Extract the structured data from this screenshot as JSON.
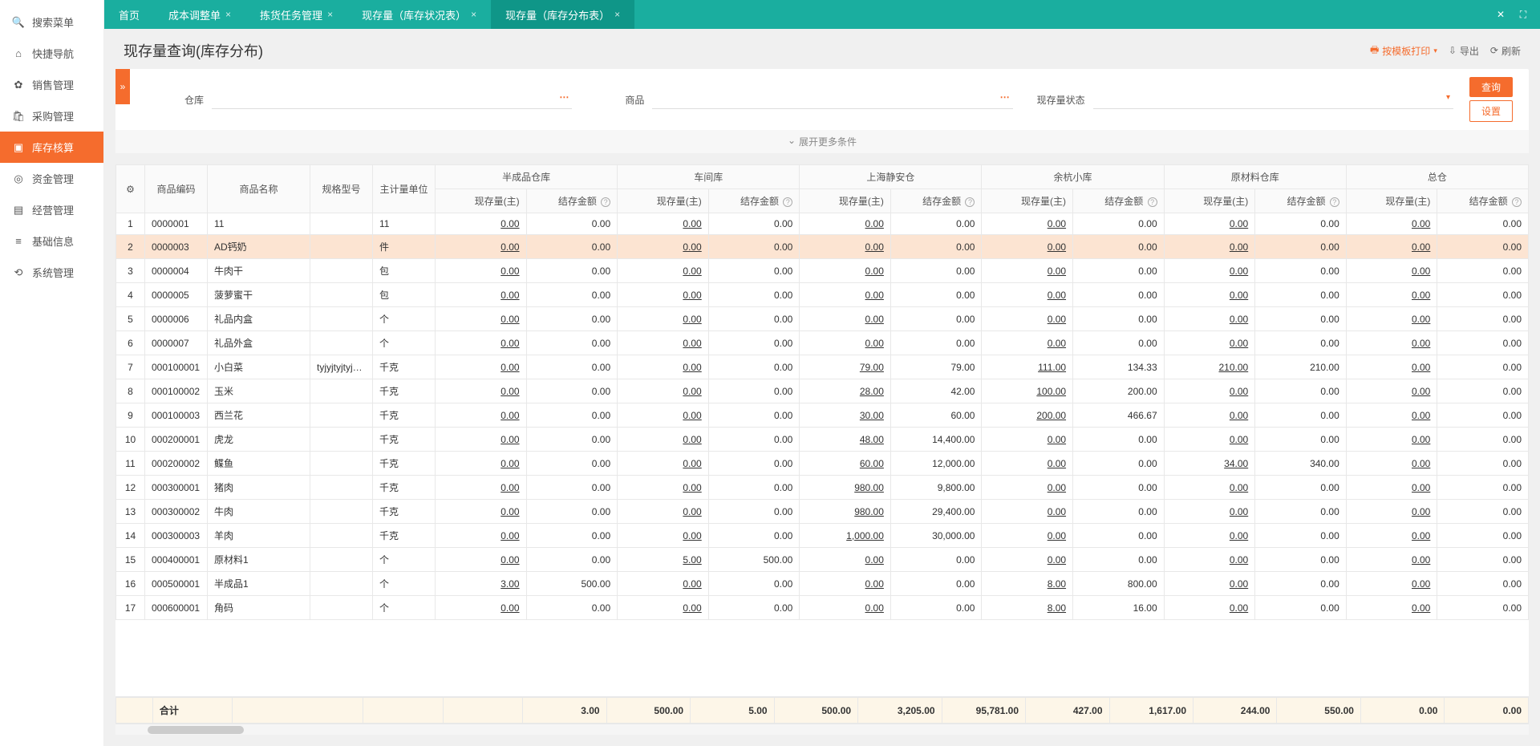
{
  "sidebar": {
    "items": [
      {
        "label": "搜索菜单",
        "icon": "search"
      },
      {
        "label": "快捷导航",
        "icon": "home"
      },
      {
        "label": "销售管理",
        "icon": "badge"
      },
      {
        "label": "采购管理",
        "icon": "bag"
      },
      {
        "label": "库存核算",
        "icon": "box",
        "active": true
      },
      {
        "label": "资金管理",
        "icon": "coin"
      },
      {
        "label": "经营管理",
        "icon": "clipboard"
      },
      {
        "label": "基础信息",
        "icon": "bars"
      },
      {
        "label": "系统管理",
        "icon": "gear"
      }
    ]
  },
  "tabs": [
    {
      "label": "首页",
      "closable": false
    },
    {
      "label": "成本调整单",
      "closable": true
    },
    {
      "label": "拣货任务管理",
      "closable": true
    },
    {
      "label": "现存量（库存状况表）",
      "closable": true
    },
    {
      "label": "现存量（库存分布表）",
      "closable": true,
      "active": true
    }
  ],
  "page": {
    "title": "现存量查询(库存分布)"
  },
  "headerActions": {
    "print": "按模板打印",
    "export": "导出",
    "refresh": "刷新"
  },
  "filter": {
    "warehouse_label": "仓库",
    "product_label": "商品",
    "status_label": "现存量状态",
    "expand_label": "展开更多条件",
    "query_btn": "查询",
    "setting_btn": "设置"
  },
  "warehouses": [
    "半成品仓库",
    "车间库",
    "上海静安仓",
    "余杭小库",
    "原材料仓库",
    "总仓"
  ],
  "columns": {
    "code": "商品编码",
    "name": "商品名称",
    "spec": "规格型号",
    "unit": "主计量单位",
    "qty": "现存量(主)",
    "amt": "结存金额",
    "total_label": "合计"
  },
  "rows": [
    {
      "idx": 1,
      "code": "0000001",
      "name": "11",
      "spec": "",
      "unit": "11",
      "v": [
        [
          "0.00",
          "0.00"
        ],
        [
          "0.00",
          "0.00"
        ],
        [
          "0.00",
          "0.00"
        ],
        [
          "0.00",
          "0.00"
        ],
        [
          "0.00",
          "0.00"
        ],
        [
          "0.00",
          "0.00"
        ]
      ]
    },
    {
      "idx": 2,
      "code": "0000003",
      "name": "AD钙奶",
      "spec": "",
      "unit": "件",
      "highlight": true,
      "v": [
        [
          "0.00",
          "0.00"
        ],
        [
          "0.00",
          "0.00"
        ],
        [
          "0.00",
          "0.00"
        ],
        [
          "0.00",
          "0.00"
        ],
        [
          "0.00",
          "0.00"
        ],
        [
          "0.00",
          "0.00"
        ]
      ]
    },
    {
      "idx": 3,
      "code": "0000004",
      "name": "牛肉干",
      "spec": "",
      "unit": "包",
      "v": [
        [
          "0.00",
          "0.00"
        ],
        [
          "0.00",
          "0.00"
        ],
        [
          "0.00",
          "0.00"
        ],
        [
          "0.00",
          "0.00"
        ],
        [
          "0.00",
          "0.00"
        ],
        [
          "0.00",
          "0.00"
        ]
      ]
    },
    {
      "idx": 4,
      "code": "0000005",
      "name": "菠萝蜜干",
      "spec": "",
      "unit": "包",
      "v": [
        [
          "0.00",
          "0.00"
        ],
        [
          "0.00",
          "0.00"
        ],
        [
          "0.00",
          "0.00"
        ],
        [
          "0.00",
          "0.00"
        ],
        [
          "0.00",
          "0.00"
        ],
        [
          "0.00",
          "0.00"
        ]
      ]
    },
    {
      "idx": 5,
      "code": "0000006",
      "name": "礼品内盒",
      "spec": "",
      "unit": "个",
      "v": [
        [
          "0.00",
          "0.00"
        ],
        [
          "0.00",
          "0.00"
        ],
        [
          "0.00",
          "0.00"
        ],
        [
          "0.00",
          "0.00"
        ],
        [
          "0.00",
          "0.00"
        ],
        [
          "0.00",
          "0.00"
        ]
      ]
    },
    {
      "idx": 6,
      "code": "0000007",
      "name": "礼品外盒",
      "spec": "",
      "unit": "个",
      "v": [
        [
          "0.00",
          "0.00"
        ],
        [
          "0.00",
          "0.00"
        ],
        [
          "0.00",
          "0.00"
        ],
        [
          "0.00",
          "0.00"
        ],
        [
          "0.00",
          "0.00"
        ],
        [
          "0.00",
          "0.00"
        ]
      ]
    },
    {
      "idx": 7,
      "code": "000100001",
      "name": "小白菜",
      "spec": "tyjyjtyjtyjdf...",
      "unit": "千克",
      "v": [
        [
          "0.00",
          "0.00"
        ],
        [
          "0.00",
          "0.00"
        ],
        [
          "79.00",
          "79.00"
        ],
        [
          "111.00",
          "134.33"
        ],
        [
          "210.00",
          "210.00"
        ],
        [
          "0.00",
          "0.00"
        ]
      ]
    },
    {
      "idx": 8,
      "code": "000100002",
      "name": "玉米",
      "spec": "",
      "unit": "千克",
      "v": [
        [
          "0.00",
          "0.00"
        ],
        [
          "0.00",
          "0.00"
        ],
        [
          "28.00",
          "42.00"
        ],
        [
          "100.00",
          "200.00"
        ],
        [
          "0.00",
          "0.00"
        ],
        [
          "0.00",
          "0.00"
        ]
      ]
    },
    {
      "idx": 9,
      "code": "000100003",
      "name": "西兰花",
      "spec": "",
      "unit": "千克",
      "v": [
        [
          "0.00",
          "0.00"
        ],
        [
          "0.00",
          "0.00"
        ],
        [
          "30.00",
          "60.00"
        ],
        [
          "200.00",
          "466.67"
        ],
        [
          "0.00",
          "0.00"
        ],
        [
          "0.00",
          "0.00"
        ]
      ]
    },
    {
      "idx": 10,
      "code": "000200001",
      "name": "虎龙",
      "spec": "",
      "unit": "千克",
      "v": [
        [
          "0.00",
          "0.00"
        ],
        [
          "0.00",
          "0.00"
        ],
        [
          "48.00",
          "14,400.00"
        ],
        [
          "0.00",
          "0.00"
        ],
        [
          "0.00",
          "0.00"
        ],
        [
          "0.00",
          "0.00"
        ]
      ]
    },
    {
      "idx": 11,
      "code": "000200002",
      "name": "鲽鱼",
      "spec": "",
      "unit": "千克",
      "v": [
        [
          "0.00",
          "0.00"
        ],
        [
          "0.00",
          "0.00"
        ],
        [
          "60.00",
          "12,000.00"
        ],
        [
          "0.00",
          "0.00"
        ],
        [
          "34.00",
          "340.00"
        ],
        [
          "0.00",
          "0.00"
        ]
      ]
    },
    {
      "idx": 12,
      "code": "000300001",
      "name": "猪肉",
      "spec": "",
      "unit": "千克",
      "v": [
        [
          "0.00",
          "0.00"
        ],
        [
          "0.00",
          "0.00"
        ],
        [
          "980.00",
          "9,800.00"
        ],
        [
          "0.00",
          "0.00"
        ],
        [
          "0.00",
          "0.00"
        ],
        [
          "0.00",
          "0.00"
        ]
      ]
    },
    {
      "idx": 13,
      "code": "000300002",
      "name": "牛肉",
      "spec": "",
      "unit": "千克",
      "v": [
        [
          "0.00",
          "0.00"
        ],
        [
          "0.00",
          "0.00"
        ],
        [
          "980.00",
          "29,400.00"
        ],
        [
          "0.00",
          "0.00"
        ],
        [
          "0.00",
          "0.00"
        ],
        [
          "0.00",
          "0.00"
        ]
      ]
    },
    {
      "idx": 14,
      "code": "000300003",
      "name": "羊肉",
      "spec": "",
      "unit": "千克",
      "v": [
        [
          "0.00",
          "0.00"
        ],
        [
          "0.00",
          "0.00"
        ],
        [
          "1,000.00",
          "30,000.00"
        ],
        [
          "0.00",
          "0.00"
        ],
        [
          "0.00",
          "0.00"
        ],
        [
          "0.00",
          "0.00"
        ]
      ]
    },
    {
      "idx": 15,
      "code": "000400001",
      "name": "原材料1",
      "spec": "",
      "unit": "个",
      "v": [
        [
          "0.00",
          "0.00"
        ],
        [
          "5.00",
          "500.00"
        ],
        [
          "0.00",
          "0.00"
        ],
        [
          "0.00",
          "0.00"
        ],
        [
          "0.00",
          "0.00"
        ],
        [
          "0.00",
          "0.00"
        ]
      ]
    },
    {
      "idx": 16,
      "code": "000500001",
      "name": "半成品1",
      "spec": "",
      "unit": "个",
      "v": [
        [
          "3.00",
          "500.00"
        ],
        [
          "0.00",
          "0.00"
        ],
        [
          "0.00",
          "0.00"
        ],
        [
          "8.00",
          "800.00"
        ],
        [
          "0.00",
          "0.00"
        ],
        [
          "0.00",
          "0.00"
        ]
      ]
    },
    {
      "idx": 17,
      "code": "000600001",
      "name": "角码",
      "spec": "",
      "unit": "个",
      "v": [
        [
          "0.00",
          "0.00"
        ],
        [
          "0.00",
          "0.00"
        ],
        [
          "0.00",
          "0.00"
        ],
        [
          "8.00",
          "16.00"
        ],
        [
          "0.00",
          "0.00"
        ],
        [
          "0.00",
          "0.00"
        ]
      ]
    }
  ],
  "totals": [
    "3.00",
    "500.00",
    "5.00",
    "500.00",
    "3,205.00",
    "95,781.00",
    "427.00",
    "1,617.00",
    "244.00",
    "550.00",
    "0.00",
    "0.00"
  ],
  "colors": {
    "accent": "#f56c2d",
    "tabbar": "#1aae9f",
    "tab_active": "#0f9688",
    "row_highlight": "#fce4d2",
    "footer_bg": "#fdf6e8"
  }
}
